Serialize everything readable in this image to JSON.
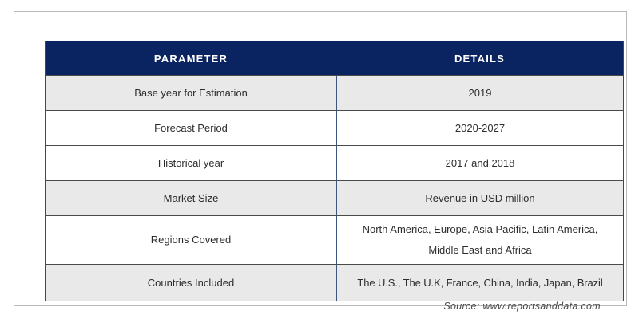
{
  "table": {
    "header": {
      "parameter": "PARAMETER",
      "details": "DETAILS"
    },
    "rows": [
      {
        "parameter": "Base year for Estimation",
        "details": "2019"
      },
      {
        "parameter": "Forecast Period",
        "details": "2020-2027"
      },
      {
        "parameter": "Historical year",
        "details": "2017 and 2018"
      },
      {
        "parameter": "Market Size",
        "details": "Revenue in USD million"
      },
      {
        "parameter": "Regions Covered",
        "details": "North America, Europe, Asia Pacific, Latin America, Middle East and Africa"
      },
      {
        "parameter": "Countries Included",
        "details": "The U.S., The  U.K, France, China, India, Japan, Brazil"
      }
    ]
  },
  "footer": {
    "source": "Source: www.reportsanddata.com"
  },
  "colors": {
    "header_bg": "#0a2361",
    "row_shaded_bg": "#e9e9e9",
    "table_border": "#2e4a7a"
  }
}
